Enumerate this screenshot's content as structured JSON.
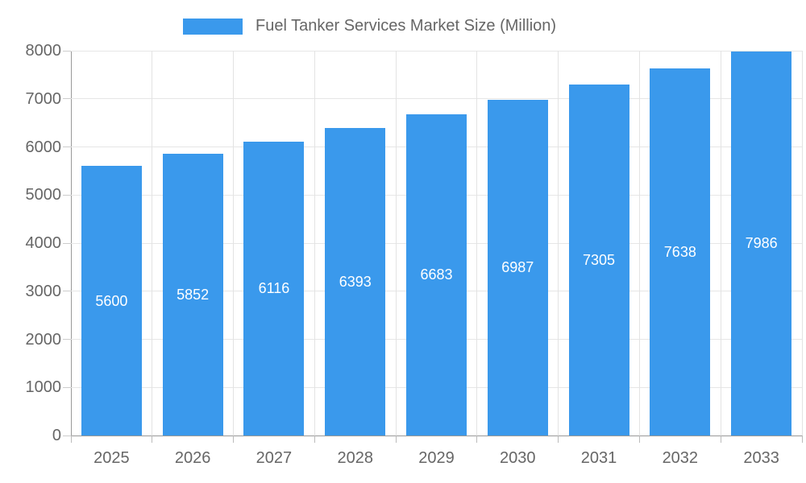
{
  "chart_data": {
    "type": "bar",
    "title": "Fuel Tanker Services Market Size (Million)",
    "categories": [
      "2025",
      "2026",
      "2027",
      "2028",
      "2029",
      "2030",
      "2031",
      "2032",
      "2033"
    ],
    "values": [
      5600,
      5852,
      6116,
      6393,
      6683,
      6987,
      7305,
      7638,
      7986
    ],
    "series_name": "Fuel Tanker Services Market Size (Million)",
    "xlabel": "",
    "ylabel": "",
    "ylim": [
      0,
      8000
    ],
    "y_ticks": [
      0,
      1000,
      2000,
      3000,
      4000,
      5000,
      6000,
      7000,
      8000
    ],
    "grid": "on",
    "legend_position": "top-center",
    "value_labels": "inside-center-white"
  },
  "colors": {
    "bar": "#3a99ec",
    "text": "#666666",
    "value_label_text": "#ffffff",
    "gridline": "#e6e6e6",
    "axis_line": "#999999",
    "background": "#ffffff"
  }
}
